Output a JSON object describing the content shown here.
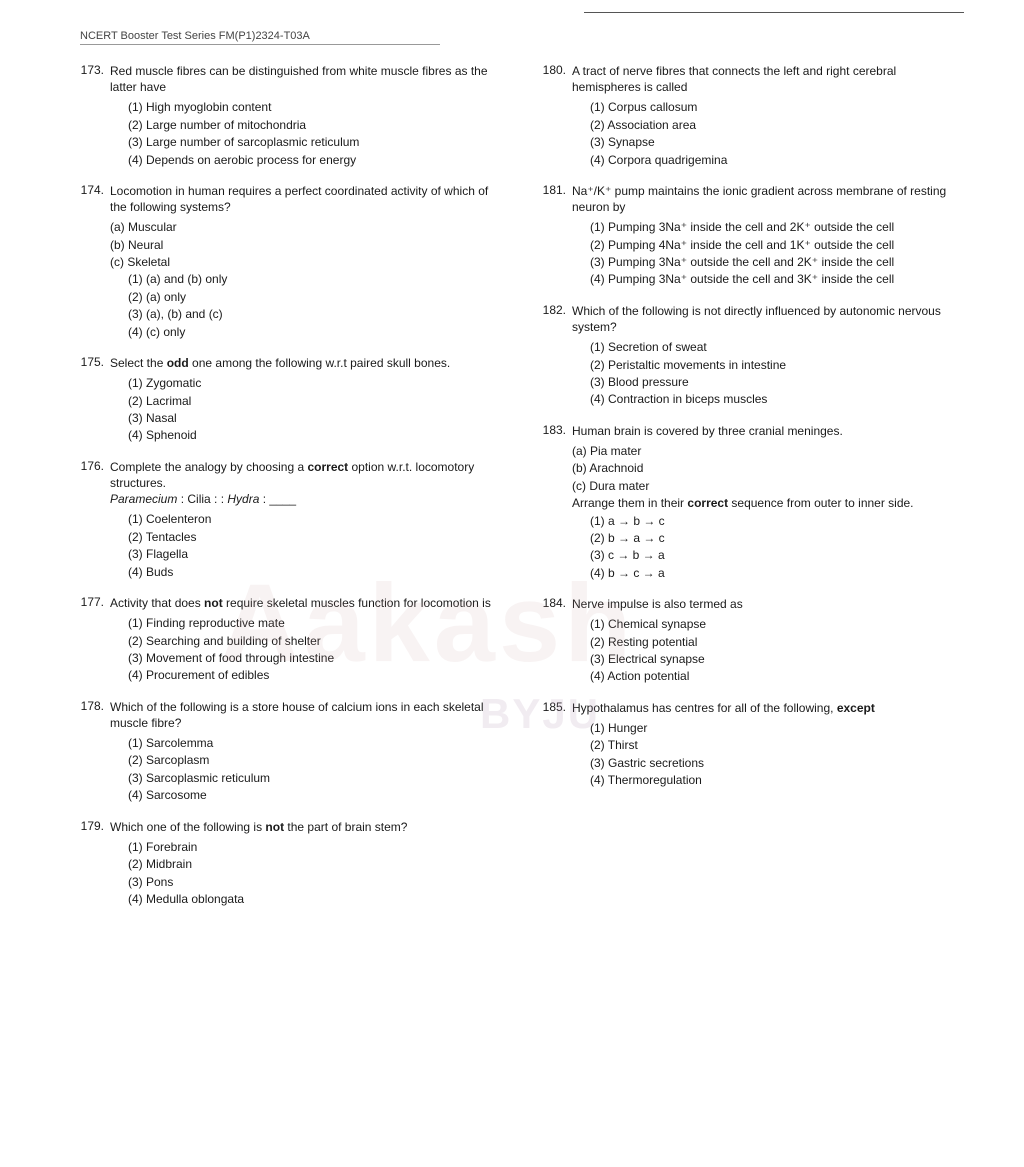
{
  "header": "NCERT Booster Test Series FM(P1)2324-T03A",
  "watermark1": "Aakash",
  "watermark2": "BYJU",
  "left": [
    {
      "n": "173.",
      "t": "Red muscle fibres can be distinguished from white muscle fibres as the latter have",
      "opts": [
        "(1) High myoglobin content",
        "(2) Large number of mitochondria",
        "(3) Large number of sarcoplasmic reticulum",
        "(4) Depends on aerobic process for energy"
      ]
    },
    {
      "n": "174.",
      "t": "Locomotion in human requires a perfect coordinated activity of which of the following systems?",
      "subs": [
        "(a) Muscular",
        "(b) Neural",
        "(c) Skeletal"
      ],
      "opts": [
        "(1) (a) and (b) only",
        "(2) (a) only",
        "(3) (a), (b) and (c)",
        "(4) (c) only"
      ]
    },
    {
      "n": "175.",
      "t": "Select the <b>odd</b> one among the following w.r.t paired skull bones.",
      "opts": [
        "(1) Zygomatic",
        "(2) Lacrimal",
        "(3) Nasal",
        "(4) Sphenoid"
      ]
    },
    {
      "n": "176.",
      "t": "Complete the analogy by choosing a <b>correct</b> option w.r.t. locomotory structures.<br><i>Paramecium</i> : Cilia : : <i>Hydra</i> : ____",
      "opts": [
        "(1) Coelenteron",
        "(2) Tentacles",
        "(3) Flagella",
        "(4) Buds"
      ]
    },
    {
      "n": "177.",
      "t": "Activity that does <b>not</b> require skeletal muscles function for locomotion is",
      "opts": [
        "(1) Finding reproductive mate",
        "(2) Searching and building of shelter",
        "(3) Movement of food through intestine",
        "(4) Procurement of edibles"
      ]
    },
    {
      "n": "178.",
      "t": "Which of the following is a store house of calcium ions in each skeletal muscle fibre?",
      "opts": [
        "(1) Sarcolemma",
        "(2) Sarcoplasm",
        "(3) Sarcoplasmic reticulum",
        "(4) Sarcosome"
      ]
    },
    {
      "n": "179.",
      "t": "Which one of the following is <b>not</b> the part of brain stem?",
      "opts": [
        "(1) Forebrain",
        "(2) Midbrain",
        "(3) Pons",
        "(4) Medulla oblongata"
      ]
    }
  ],
  "right": [
    {
      "n": "180.",
      "t": "A tract of nerve fibres that connects the left and right cerebral hemispheres is called",
      "opts": [
        "(1) Corpus callosum",
        "(2) Association area",
        "(3) Synapse",
        "(4) Corpora quadrigemina"
      ]
    },
    {
      "n": "181.",
      "t": "Na⁺/K⁺ pump maintains the ionic gradient across membrane of resting neuron by",
      "opts": [
        "(1) Pumping 3Na⁺ inside the cell and 2K⁺ outside the cell",
        "(2) Pumping 4Na⁺ inside the cell and 1K⁺ outside the cell",
        "(3) Pumping 3Na⁺ outside the cell and 2K⁺ inside the cell",
        "(4) Pumping 3Na⁺ outside the cell and 3K⁺ inside the cell"
      ]
    },
    {
      "n": "182.",
      "t": "Which of the following is not directly influenced by autonomic nervous system?",
      "opts": [
        "(1) Secretion of sweat",
        "(2) Peristaltic movements in intestine",
        "(3) Blood pressure",
        "(4) Contraction in biceps muscles"
      ]
    },
    {
      "n": "183.",
      "t": "Human brain is covered by three cranial meninges.",
      "subs": [
        "(a) Pia mater",
        "(b) Arachnoid",
        "(c) Dura mater",
        "Arrange them in their <b>correct</b> sequence from outer to inner side."
      ],
      "opts": [
        "(1) a → b → c",
        "(2) b → a → c",
        "(3) c → b → a",
        "(4) b → c → a"
      ]
    },
    {
      "n": "184.",
      "t": "Nerve impulse is also termed as",
      "opts": [
        "(1) Chemical synapse",
        "(2) Resting potential",
        "(3) Electrical synapse",
        "(4) Action potential"
      ]
    },
    {
      "n": "185.",
      "t": "Hypothalamus has centres for all of the following, <b>except</b>",
      "opts": [
        "(1) Hunger",
        "(2) Thirst",
        "(3) Gastric secretions",
        "(4) Thermoregulation"
      ]
    }
  ]
}
